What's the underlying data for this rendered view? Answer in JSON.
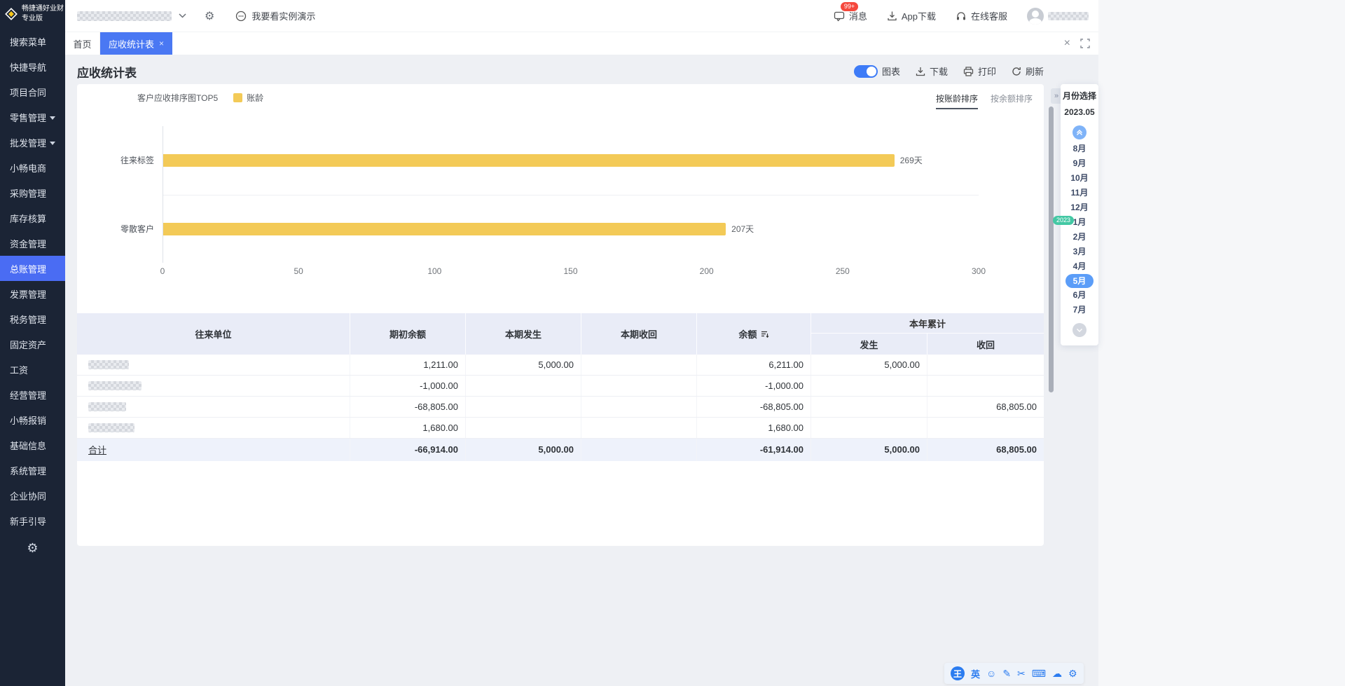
{
  "brand": {
    "name": "畅捷通好业财",
    "edition": "专业版"
  },
  "sidebar": {
    "items": [
      {
        "label": "搜索菜单"
      },
      {
        "label": "快捷导航"
      },
      {
        "label": "项目合同"
      },
      {
        "label": "零售管理",
        "has_arrow": true
      },
      {
        "label": "批发管理",
        "has_arrow": true
      },
      {
        "label": "小畅电商"
      },
      {
        "label": "采购管理"
      },
      {
        "label": "库存核算"
      },
      {
        "label": "资金管理"
      },
      {
        "label": "总账管理",
        "active": true
      },
      {
        "label": "发票管理"
      },
      {
        "label": "税务管理"
      },
      {
        "label": "固定资产"
      },
      {
        "label": "工资"
      },
      {
        "label": "经营管理"
      },
      {
        "label": "小畅报销"
      },
      {
        "label": "基础信息"
      },
      {
        "label": "系统管理"
      },
      {
        "label": "企业协同"
      },
      {
        "label": "新手引导"
      }
    ]
  },
  "topbar": {
    "demo": "我要看实例演示",
    "messages": "消息",
    "messages_badge": "99+",
    "app_download": "App下载",
    "support": "在线客服"
  },
  "tabs": {
    "home": "首页",
    "current": "应收统计表",
    "close": "×"
  },
  "page": {
    "title": "应收统计表",
    "chart_toggle": "图表",
    "download": "下载",
    "print": "打印",
    "refresh": "刷新"
  },
  "chart_controls": {
    "sort_age": "按账龄排序",
    "sort_balance": "按余额排序"
  },
  "chart_data": {
    "type": "bar",
    "orientation": "horizontal",
    "title": "客户应收排序图TOP5",
    "series_name": "账龄",
    "categories": [
      "往来标签",
      "零散客户"
    ],
    "values": [
      269,
      207
    ],
    "unit": "天",
    "value_labels": [
      "269天",
      "207天"
    ],
    "x_ticks": [
      "0",
      "50",
      "100",
      "150",
      "200",
      "250",
      "300"
    ],
    "xlim": [
      0,
      300
    ],
    "bar_color": "#f3ca57",
    "legend_position": "top"
  },
  "months": {
    "title": "月份选择",
    "current": "2023.05",
    "year_badge": "2023",
    "list": [
      "8月",
      "9月",
      "10月",
      "11月",
      "12月",
      "1月",
      "2月",
      "3月",
      "4月",
      "5月",
      "6月",
      "7月"
    ],
    "selected": "5月"
  },
  "table": {
    "headers": {
      "partner": "往来单位",
      "opening": "期初余额",
      "occur": "本期发生",
      "recover": "本期收回",
      "balance": "余额",
      "ytd": "本年累计",
      "ytd_occur": "发生",
      "ytd_recover": "收回"
    },
    "rows": [
      {
        "opening": "1,211.00",
        "occur": "5,000.00",
        "recover": "",
        "balance": "6,211.00",
        "ytd_occur": "5,000.00",
        "ytd_recover": ""
      },
      {
        "opening": "-1,000.00",
        "occur": "",
        "recover": "",
        "balance": "-1,000.00",
        "ytd_occur": "",
        "ytd_recover": ""
      },
      {
        "opening": "-68,805.00",
        "occur": "",
        "recover": "",
        "balance": "-68,805.00",
        "ytd_occur": "",
        "ytd_recover": "68,805.00"
      },
      {
        "opening": "1,680.00",
        "occur": "",
        "recover": "",
        "balance": "1,680.00",
        "ytd_occur": "",
        "ytd_recover": ""
      }
    ],
    "total": {
      "label": "合计",
      "opening": "-66,914.00",
      "occur": "5,000.00",
      "recover": "",
      "balance": "-61,914.00",
      "ytd_occur": "5,000.00",
      "ytd_recover": "68,805.00"
    }
  },
  "ime": {
    "cn": "王",
    "en": "英",
    "icons": [
      "☺",
      "✎",
      "✂",
      "⌨",
      "☁",
      "⚙"
    ]
  },
  "colors": {
    "sidebar_bg": "#1b2435",
    "accent_blue": "#4a6cf3",
    "tab_blue": "#4a78f3",
    "bar_yellow": "#f3ca57",
    "month_selected_blue": "#5b9df8",
    "year_badge_green": "#43c8a4",
    "header_lavender": "#e9ecf7"
  }
}
